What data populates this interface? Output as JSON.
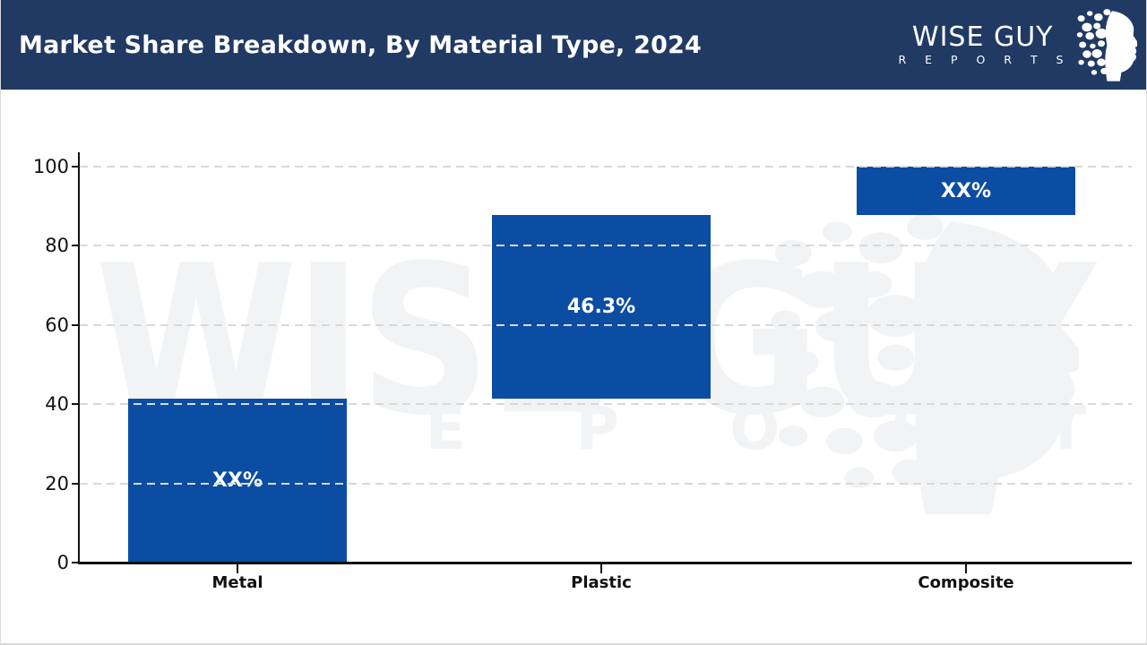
{
  "header": {
    "title": "Market Share Breakdown, By Material Type, 2024",
    "bg_color": "#203a64",
    "logo": {
      "line1": "WISE GUY",
      "line2": "R E P O R T S"
    }
  },
  "watermark": {
    "line1": "WISE GUY",
    "line2": "R E P O R T S"
  },
  "chart_data": {
    "type": "bar",
    "subtype": "stacked-percentage-waterfall",
    "title": "Market Share Breakdown, By Material Type, 2024",
    "categories": [
      "Metal",
      "Plastic",
      "Composite"
    ],
    "segments": [
      {
        "category": "Metal",
        "start": 0,
        "end": 41.4,
        "label": "XX%"
      },
      {
        "category": "Plastic",
        "start": 41.4,
        "end": 87.7,
        "label": "46.3%"
      },
      {
        "category": "Composite",
        "start": 87.7,
        "end": 100,
        "label": "XX%"
      }
    ],
    "ylim": [
      0,
      100
    ],
    "yticks": [
      0,
      20,
      40,
      60,
      80,
      100
    ],
    "grid": "horizontal-dashed",
    "xlabel": "",
    "ylabel": "",
    "legend": null,
    "colors": {
      "bar": "#0b4da2",
      "bar_label": "#ffffff",
      "grid": "#d9d9d9",
      "axis": "#111111",
      "tick_label": "#111111"
    }
  }
}
